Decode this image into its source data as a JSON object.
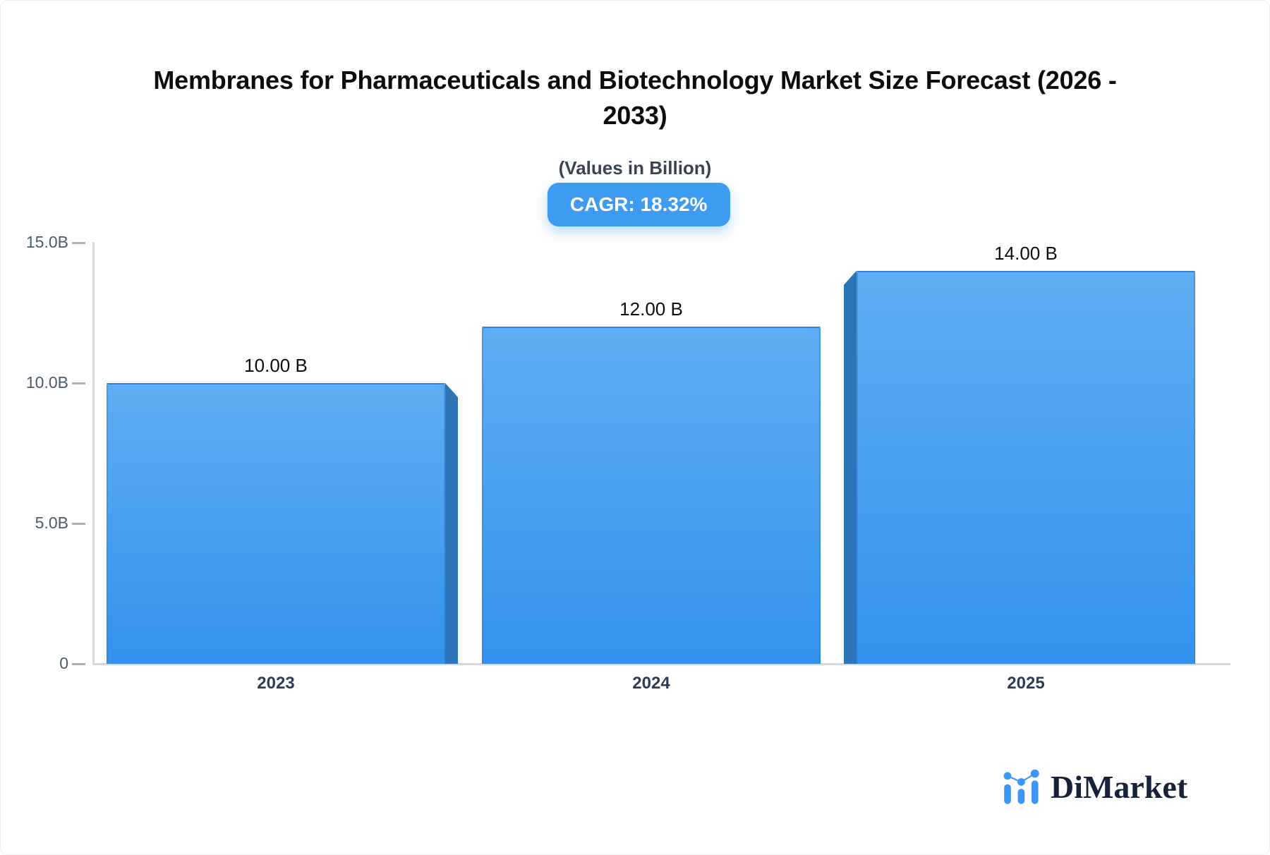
{
  "header": {
    "title": "Membranes for Pharmaceuticals and Biotechnology Market Size Forecast (2026 - 2033)",
    "subtitle": "(Values in Billion)",
    "cagr_label": "CAGR: 18.32%"
  },
  "chart_data": {
    "type": "bar",
    "title": "Membranes for Pharmaceuticals and Biotechnology Market Size Forecast (2026 - 2033)",
    "subtitle": "(Values in Billion)",
    "cagr_pct": 18.32,
    "unit": "Billion",
    "categories": [
      "2023",
      "2024",
      "2025"
    ],
    "values": [
      10.0,
      12.0,
      14.0
    ],
    "data_labels": [
      "10.00 B",
      "12.00 B",
      "14.00 B"
    ],
    "ylim": [
      0,
      15
    ],
    "yticks": [
      {
        "value": 15,
        "label": "15.0B"
      },
      {
        "value": 10,
        "label": "10.0B"
      },
      {
        "value": 5,
        "label": "5.0B"
      },
      {
        "value": 0,
        "label": "0"
      }
    ],
    "grid": false,
    "legend": false,
    "bar_color_top": "#5FADF2",
    "bar_color_bottom": "#3392EE",
    "bar_side_color": "#2E75B7"
  },
  "colors": {
    "accent_blue": "#3D9BF2",
    "badge_text": "#FFFFFF",
    "axis_line": "#D5D7DD",
    "tick_text": "#4B5A6E",
    "xlabel_text": "#2E3D55",
    "data_label_text": "#0B0D10",
    "title_text": "#0C0D0F",
    "subtitle_text": "#3B4453",
    "logo_text": "#152238",
    "logo_icon": "#3E96F4"
  },
  "logo": {
    "name": "DiMarket",
    "icon": "dimarket-bar-chart-icon"
  }
}
